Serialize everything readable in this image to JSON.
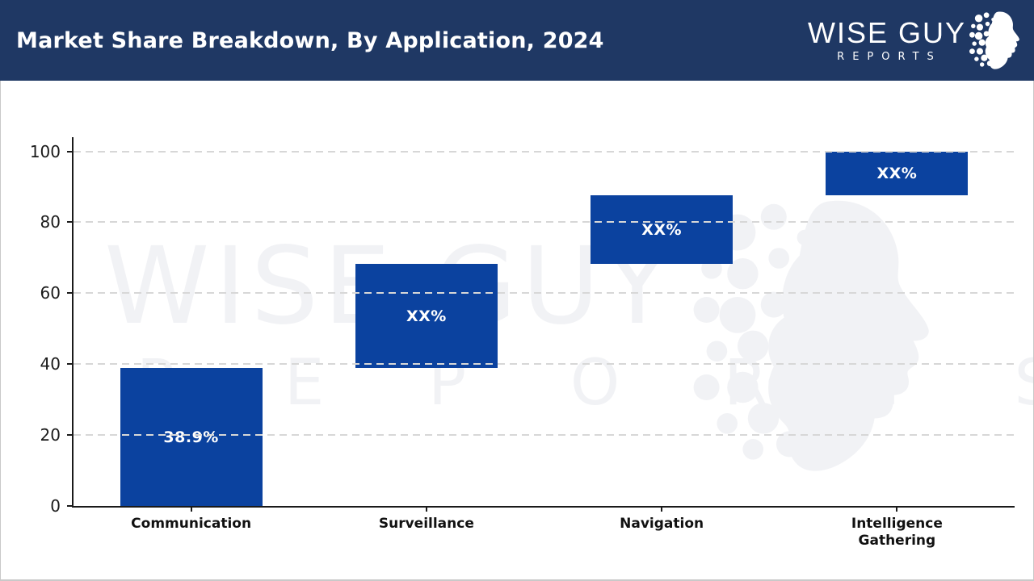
{
  "header": {
    "title": "Market Share Breakdown, By Application, 2024",
    "logo": {
      "line1": "WISE GUY",
      "line2": "REPORTS"
    }
  },
  "watermark": {
    "line1": "WISE GUY",
    "line2": "REPORTS"
  },
  "chart_data": {
    "type": "bar",
    "subtype": "floating-segment-waterfall",
    "title": "Market Share Breakdown, By Application, 2024",
    "categories": [
      "Communication",
      "Surveillance",
      "Navigation",
      "Intelligence Gathering"
    ],
    "segments": [
      {
        "category": "Communication",
        "from": 0,
        "to": 38.9,
        "label": "38.9%"
      },
      {
        "category": "Surveillance",
        "from": 38.9,
        "to": 68.2,
        "label": "XX%"
      },
      {
        "category": "Navigation",
        "from": 68.2,
        "to": 87.6,
        "label": "XX%"
      },
      {
        "category": "Intelligence Gathering",
        "from": 87.6,
        "to": 100,
        "label": "XX%"
      }
    ],
    "yticks": [
      0,
      20,
      40,
      60,
      80,
      100
    ],
    "ylim": [
      0,
      104
    ],
    "xlabel": "",
    "ylabel": "",
    "grid": "horizontal-dashed",
    "grid_above_bars": true,
    "legend": "none",
    "bar_color": "#0b429f",
    "bar_label_color": "#ffffff",
    "axis_color": "#1a1a1a",
    "gridline_color": "#d7d7d7"
  },
  "colors": {
    "header_background": "#1f3864",
    "header_text": "#ffffff",
    "chart_background": "#ffffff",
    "watermark": "#f1f2f5"
  }
}
